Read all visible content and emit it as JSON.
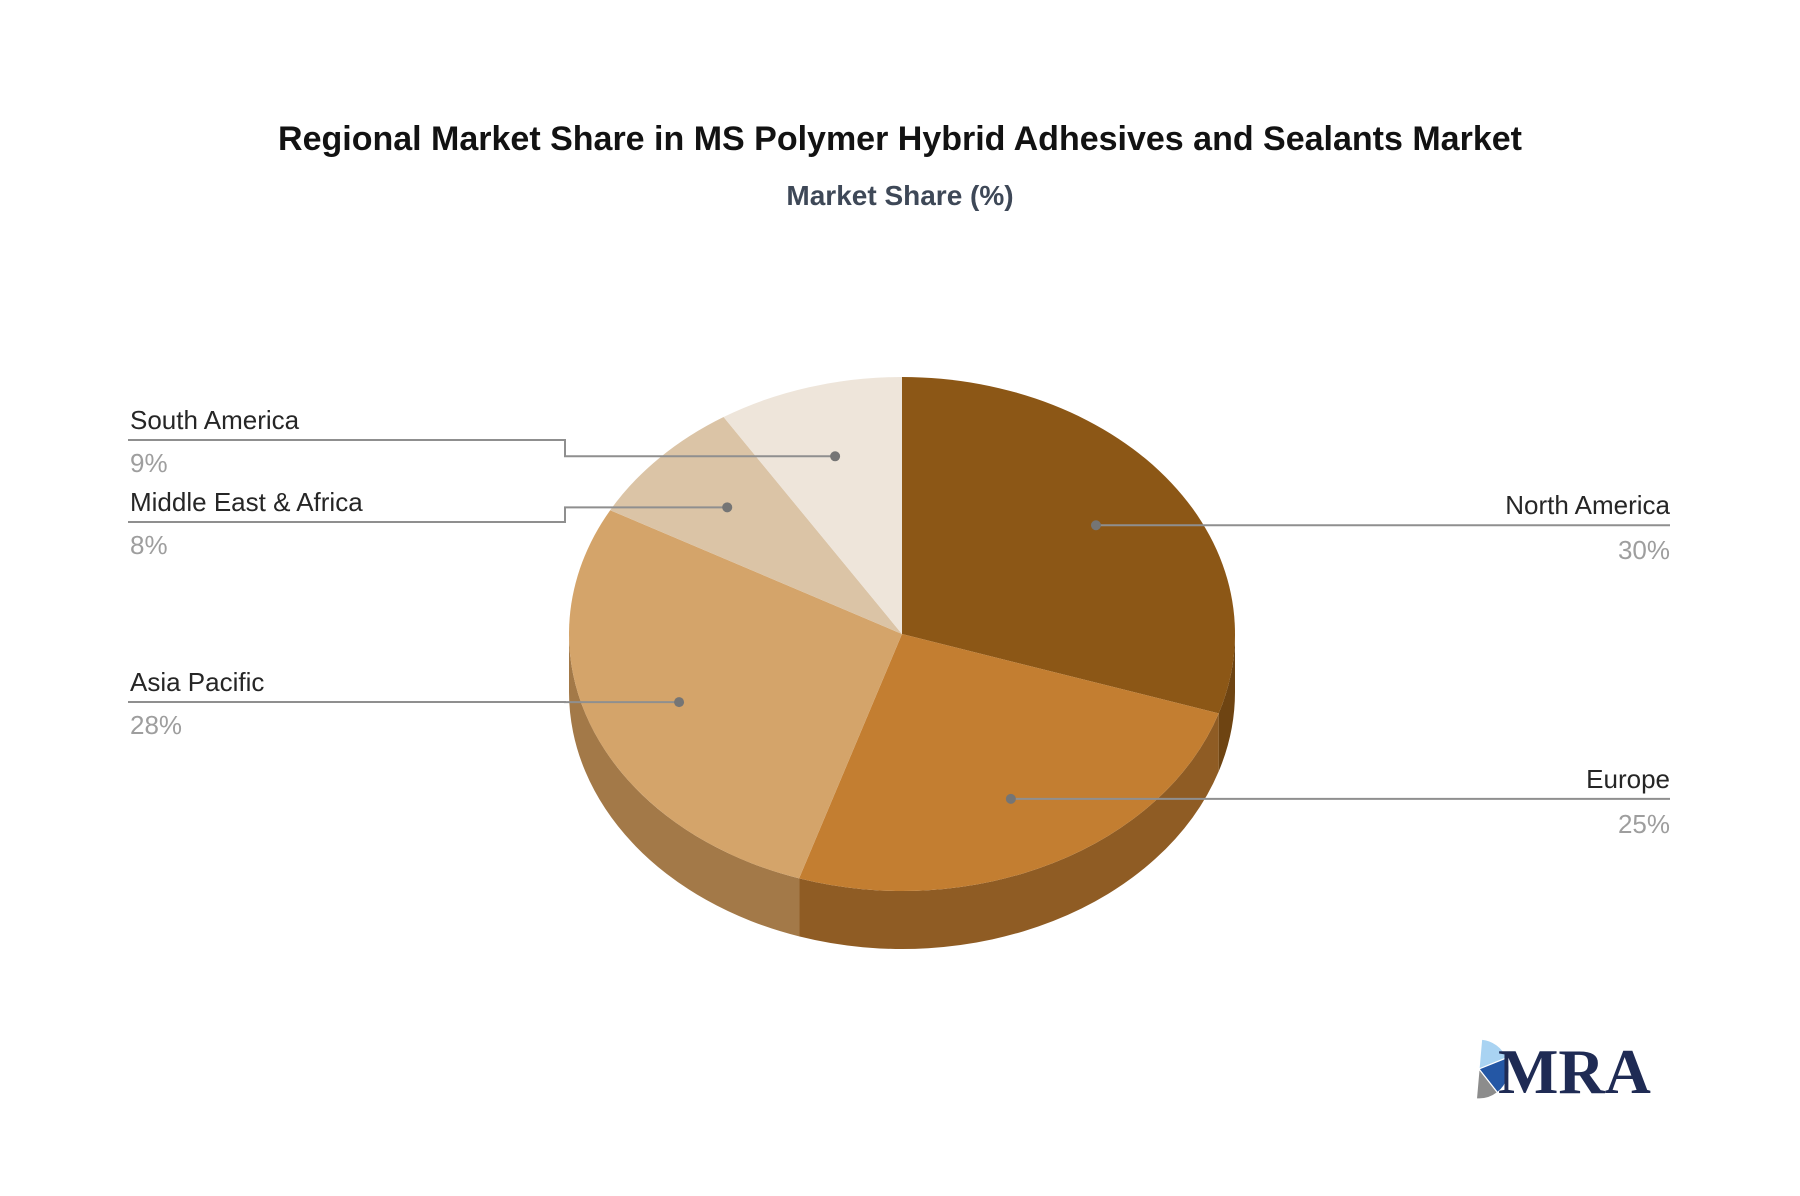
{
  "title": "Regional Market Share in MS Polymer Hybrid Adhesives and Sealants Market",
  "subtitle": "Market Share (%)",
  "chart_data": {
    "type": "pie",
    "style": "3d-pie",
    "title": "Regional Market Share in MS Polymer Hybrid Adhesives and Sealants Market",
    "subtitle": "Market Share (%)",
    "unit": "%",
    "start_angle_deg": 90,
    "direction": "clockwise",
    "legend": "none",
    "slices": [
      {
        "label": "North America",
        "value": 30,
        "display": "30%",
        "color": "#8C5716",
        "side_color": "#6E4412",
        "label_side": "right"
      },
      {
        "label": "Europe",
        "value": 25,
        "display": "25%",
        "color": "#C37E31",
        "side_color": "#8F5C24",
        "label_side": "right"
      },
      {
        "label": "Asia Pacific",
        "value": 28,
        "display": "28%",
        "color": "#D4A46A",
        "side_color": "#A37948",
        "label_side": "left"
      },
      {
        "label": "Middle East & Africa",
        "value": 8,
        "display": "8%",
        "color": "#DBC4A6",
        "side_color": "#AD9372",
        "label_side": "left"
      },
      {
        "label": "South America",
        "value": 9,
        "display": "9%",
        "color": "#EEE5DA",
        "side_color": "#BFAE9C",
        "label_side": "left"
      }
    ]
  },
  "leader_style": {
    "line_color": "#8f8f8f",
    "dot_color": "#757575",
    "name_color": "#262626",
    "value_color": "#9e9e9e"
  },
  "logo": {
    "text": "MRA",
    "icon": "pie-chart-icon",
    "colors": {
      "orange": "#F49A2C",
      "light_blue": "#A9D3F2",
      "dark_blue": "#2457A5",
      "gray": "#8C8C8C",
      "text_navy": "#1F2B54"
    }
  }
}
